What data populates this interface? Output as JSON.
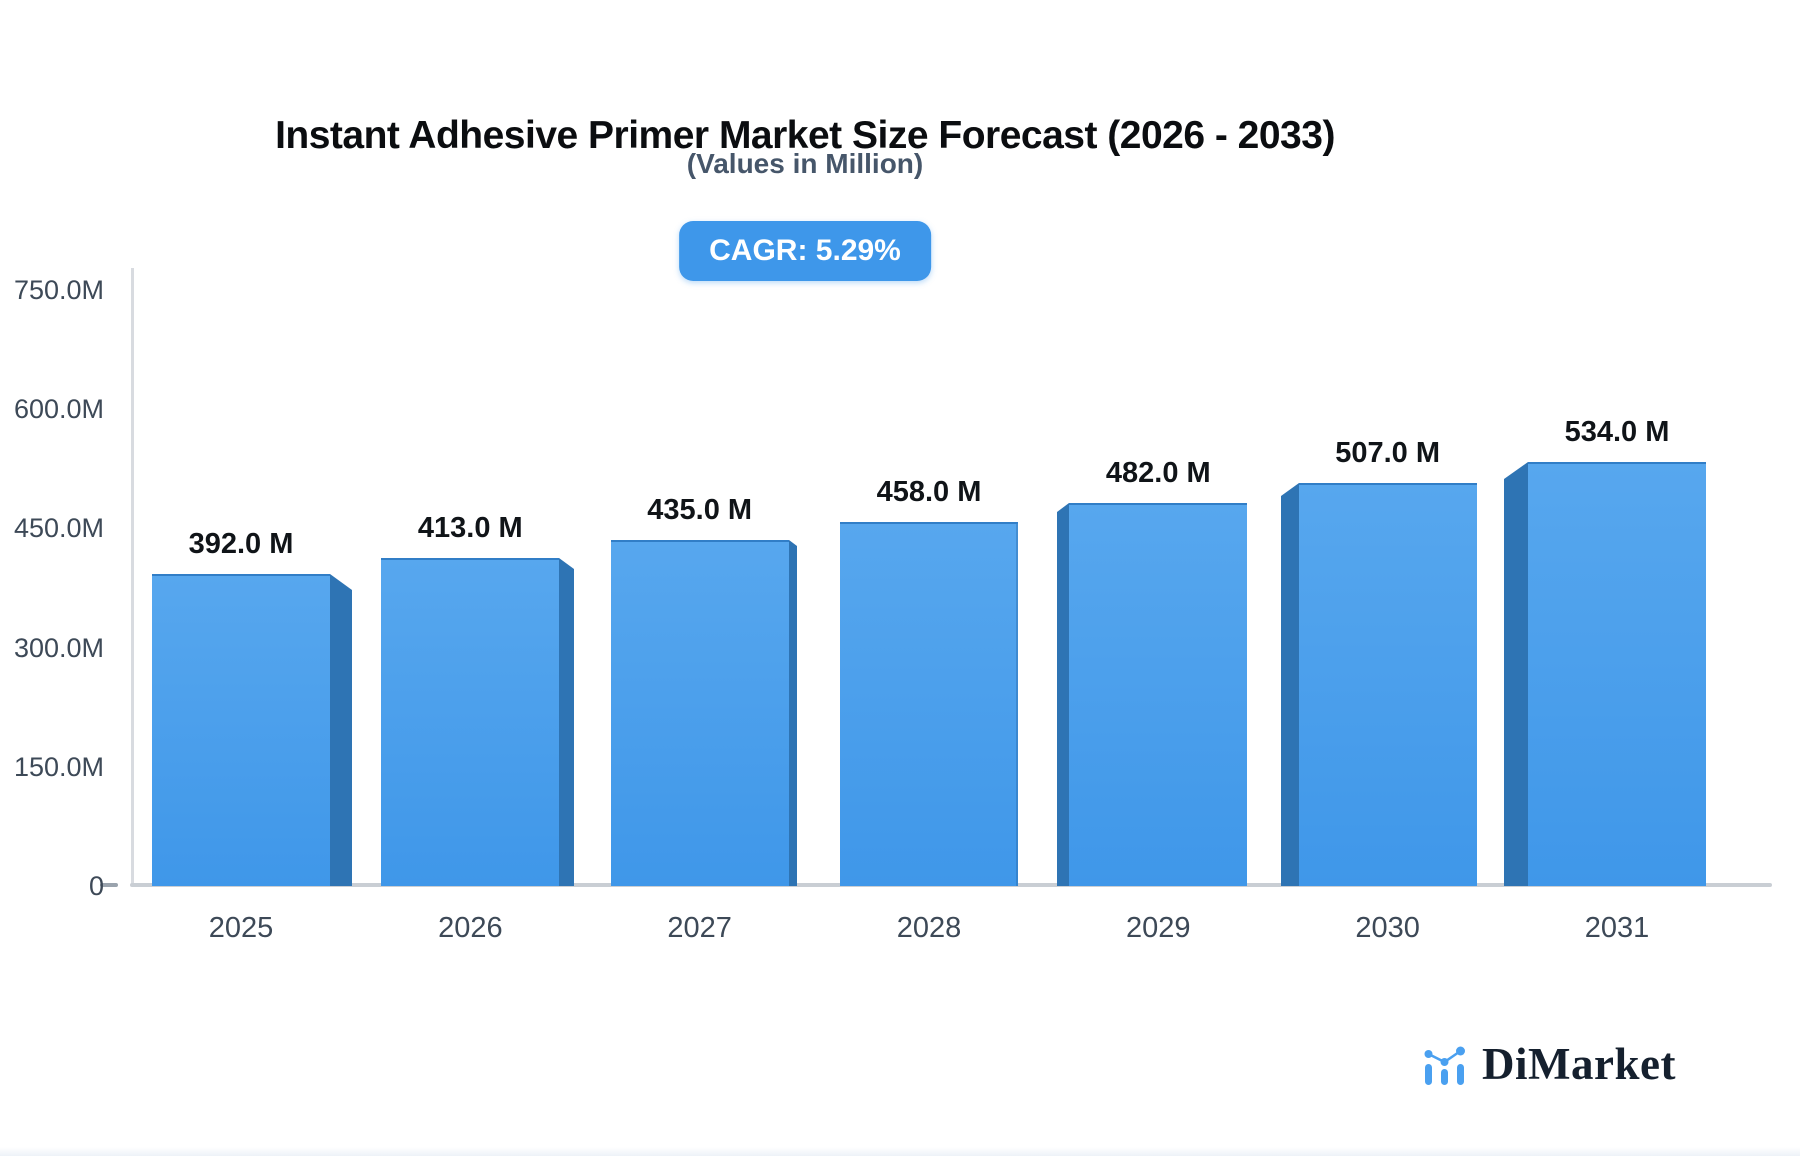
{
  "header": {
    "title": "Instant Adhesive Primer Market Size Forecast (2026 - 2033)",
    "subtitle": "(Values in Million)",
    "cagr_badge": "CAGR: 5.29%"
  },
  "chart_data": {
    "type": "bar",
    "title": "Instant Adhesive Primer Market Size Forecast (2026 - 2033)",
    "subtitle": "(Values in Million)",
    "unit": "Million",
    "cagr_pct": 5.29,
    "categories": [
      "2025",
      "2026",
      "2027",
      "2028",
      "2029",
      "2030",
      "2031"
    ],
    "values": [
      392.0,
      413.0,
      435.0,
      458.0,
      482.0,
      507.0,
      534.0
    ],
    "value_labels": [
      "392.0 M",
      "413.0 M",
      "435.0 M",
      "458.0 M",
      "482.0 M",
      "507.0 M",
      "534.0 M"
    ],
    "ylim": [
      0,
      750
    ],
    "yticks": [
      {
        "label": "750.0M",
        "value": 750
      },
      {
        "label": "600.0M",
        "value": 600
      },
      {
        "label": "450.0M",
        "value": 450
      },
      {
        "label": "300.0M",
        "value": 300
      },
      {
        "label": "150.0M",
        "value": 150
      },
      {
        "label": "0",
        "value": 0
      }
    ],
    "grid": false,
    "legend": false,
    "bar_style": "3d-perspective-center-vanishing"
  },
  "branding": {
    "name": "DiMarket",
    "icon": "mini-bar-chart-logo-icon"
  },
  "colors": {
    "bar_face_top": "#57a7ee",
    "bar_face_bottom": "#3f97e9",
    "bar_side": "#2e74b4",
    "badge_bg": "#3e97ea",
    "badge_text": "#ffffff",
    "axis_line": "#d8dbe0",
    "baseline": "#c9ced4",
    "tick_text": "#3d4957",
    "title_text": "#0b0d10",
    "subtitle_text": "#46566a",
    "logo_navy": "#15202e",
    "logo_blue": "#4aa0f0"
  }
}
